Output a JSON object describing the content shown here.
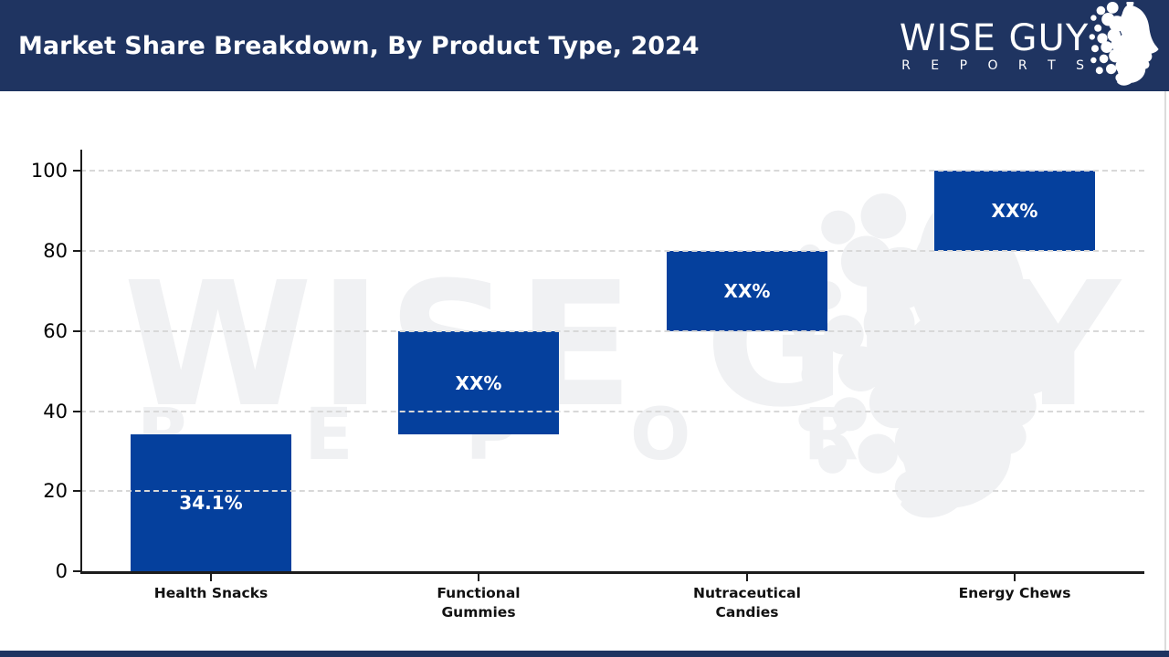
{
  "header": {
    "title": "Market Share Breakdown, By Product Type, 2024",
    "logo": {
      "line1": "WISE GUY",
      "line2": "R E P O R T S"
    }
  },
  "watermark": {
    "line1": "WISE GUY",
    "line2": "R E P O R T S"
  },
  "footer": {},
  "chart_data": {
    "type": "bar",
    "subtype": "waterfall",
    "title": "Market Share Breakdown, By Product Type, 2024",
    "categories": [
      "Health Snacks",
      "Functional Gummies",
      "Nutraceutical Candies",
      "Energy Chews"
    ],
    "segments": [
      {
        "category": "Health Snacks",
        "start": 0,
        "end": 34.1,
        "label": "34.1%"
      },
      {
        "category": "Functional Gummies",
        "start": 34.1,
        "end": 60,
        "label": "XX%"
      },
      {
        "category": "Nutraceutical Candies",
        "start": 60,
        "end": 80,
        "label": "XX%"
      },
      {
        "category": "Energy Chews",
        "start": 80,
        "end": 100,
        "label": "XX%"
      }
    ],
    "yticks": [
      0,
      20,
      40,
      60,
      80,
      100
    ],
    "ylim": [
      0,
      105
    ],
    "xlabel": "",
    "ylabel": "",
    "grid": "horizontal-dashed-over-bars",
    "legend": "none",
    "bar_color": "#05409D",
    "bar_label_color": "#ffffff",
    "gridline_color": "#d8d8d8",
    "header_color": "#1F3461",
    "watermark_color": "#f0f1f3"
  }
}
